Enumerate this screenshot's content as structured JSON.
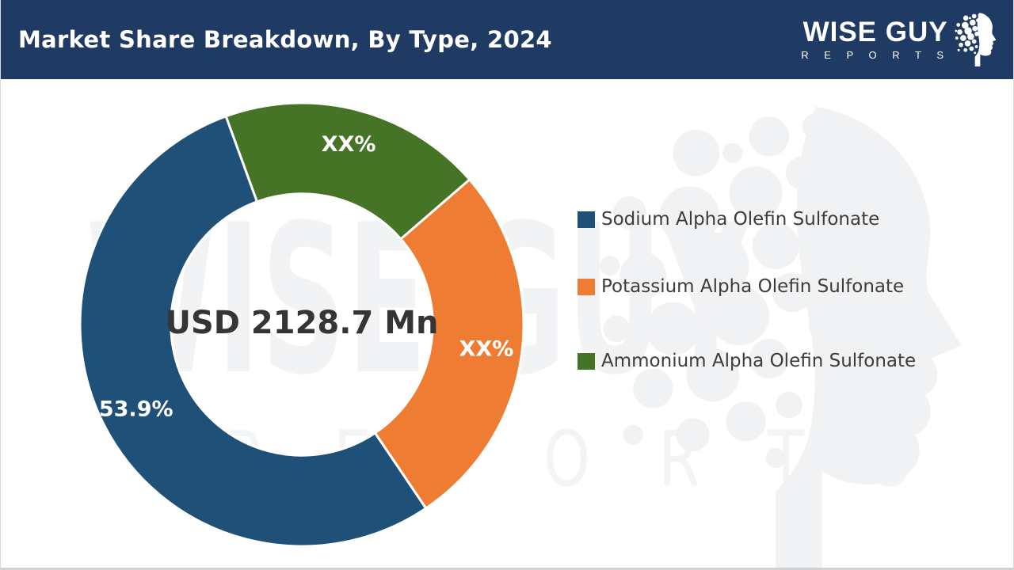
{
  "header": {
    "title": "Market Share Breakdown, By Type, 2024",
    "logo": {
      "line1": "WISE GUY",
      "line2": "R E P O R T S"
    }
  },
  "watermark": {
    "line1": "WISE GUY",
    "line2": "R E P O R T S"
  },
  "chart_data": {
    "type": "donut",
    "title": "Market Share Breakdown, By Type, 2024",
    "center_label": "USD 2128.7 Mn",
    "start_angle_deg": 110,
    "direction": "counterclockwise",
    "inner_radius_ratio": 0.59,
    "legend_position": "right",
    "segments": [
      {
        "name": "Sodium Alpha Olefin Sulfonate",
        "value_pct": 53.9,
        "display_label": "53.9%",
        "color": "#1F5078"
      },
      {
        "name": "Potassium Alpha Olefin Sulfonate",
        "value_pct": 26.9,
        "display_label": "XX%",
        "color": "#EE7D33"
      },
      {
        "name": "Ammonium Alpha Olefin Sulfonate",
        "value_pct": 19.2,
        "display_label": "XX%",
        "color": "#457427"
      }
    ]
  },
  "colors": {
    "header_bg": "#1F3A63",
    "title_text": "#FFFFFF",
    "center_text": "#353535",
    "legend_text": "#3C3C3C",
    "watermark": "#F2F3F5",
    "bottom_border": "#D0D2D4"
  }
}
